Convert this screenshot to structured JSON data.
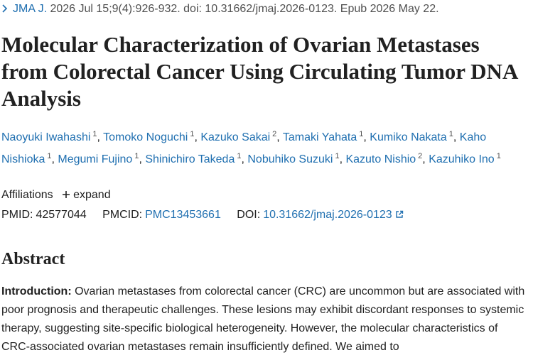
{
  "citation": {
    "journal": "JMA J.",
    "details": "2026 Jul 15;9(4):926-932. doi: 10.31662/jmaj.2026-0123. Epub 2026 May 22."
  },
  "title": "Molecular Characterization of Ovarian Metastases from Colorectal Cancer Using Circulating Tumor DNA Analysis",
  "authors": [
    {
      "name": "Naoyuki Iwahashi",
      "affiliation": "1"
    },
    {
      "name": "Tomoko Noguchi",
      "affiliation": "1"
    },
    {
      "name": "Kazuko Sakai",
      "affiliation": "2"
    },
    {
      "name": "Tamaki Yahata",
      "affiliation": "1"
    },
    {
      "name": "Kumiko Nakata",
      "affiliation": "1"
    },
    {
      "name": "Kaho Nishioka",
      "affiliation": "1"
    },
    {
      "name": "Megumi Fujino",
      "affiliation": "1"
    },
    {
      "name": "Shinichiro Takeda",
      "affiliation": "1"
    },
    {
      "name": "Nobuhiko Suzuki",
      "affiliation": "1"
    },
    {
      "name": "Kazuto Nishio",
      "affiliation": "2"
    },
    {
      "name": "Kazuhiko Ino",
      "affiliation": "1"
    }
  ],
  "affiliations": {
    "label": "Affiliations",
    "toggle": "expand"
  },
  "identifiers": {
    "pmid_label": "PMID:",
    "pmid": "42577044",
    "pmcid_label": "PMCID:",
    "pmcid": "PMC13453661",
    "doi_label": "DOI:",
    "doi": "10.31662/jmaj.2026-0123"
  },
  "abstract": {
    "heading": "Abstract",
    "section_label": "Introduction:",
    "text": "Ovarian metastases from colorectal cancer (CRC) are uncommon but are associated with poor prognosis and therapeutic challenges. These lesions may exhibit discordant responses to systemic therapy, suggesting site-specific biological heterogeneity. However, the molecular characteristics of CRC-associated ovarian metastases remain insufficiently defined. We aimed to"
  }
}
